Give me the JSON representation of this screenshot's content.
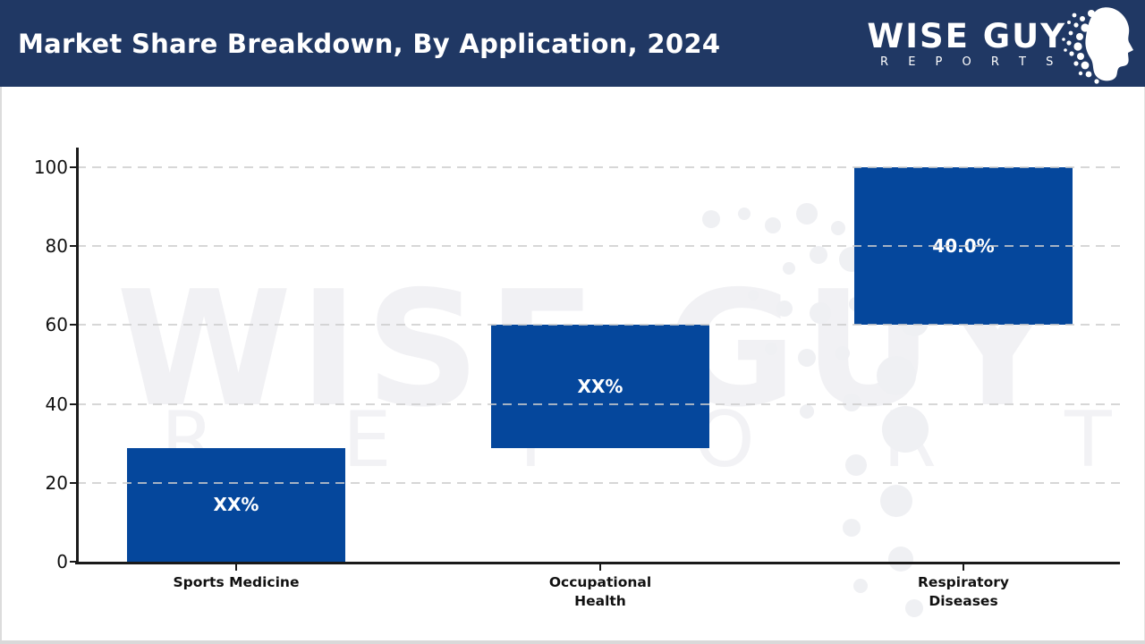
{
  "header": {
    "title": "Market Share Breakdown, By Application, 2024",
    "bg_color": "#203864",
    "logo": {
      "line1": "WISE GUY",
      "line2": "R E P O R T S",
      "face_icon": "dotted-head-profile"
    }
  },
  "watermark": {
    "line1": "WISE GUY",
    "line2": "R E P O R T S",
    "color": "#f1f1f4"
  },
  "chart_data": {
    "type": "bar",
    "subtype": "waterfall",
    "title": "Market Share Breakdown, By Application, 2024",
    "xlabel": "",
    "ylabel": "",
    "categories": [
      [
        "Sports Medicine"
      ],
      [
        "Occupational",
        "Health"
      ],
      [
        "Respiratory",
        "Diseases"
      ]
    ],
    "segments": [
      {
        "name": "Sports Medicine",
        "start": 0,
        "end": 28.8,
        "value": 28.8,
        "label": "XX%"
      },
      {
        "name": "Occupational Health",
        "start": 28.8,
        "end": 60,
        "value": 31.2,
        "label": "XX%"
      },
      {
        "name": "Respiratory Diseases",
        "start": 60,
        "end": 100,
        "value": 40.0,
        "label": "40.0%"
      }
    ],
    "yticks": [
      0,
      20,
      40,
      60,
      80,
      100
    ],
    "ylim": [
      0,
      105
    ],
    "grid": "dashed-horizontal",
    "legend": "none",
    "bar_color": "#05479c",
    "axis_color": "#1a1a1a"
  }
}
